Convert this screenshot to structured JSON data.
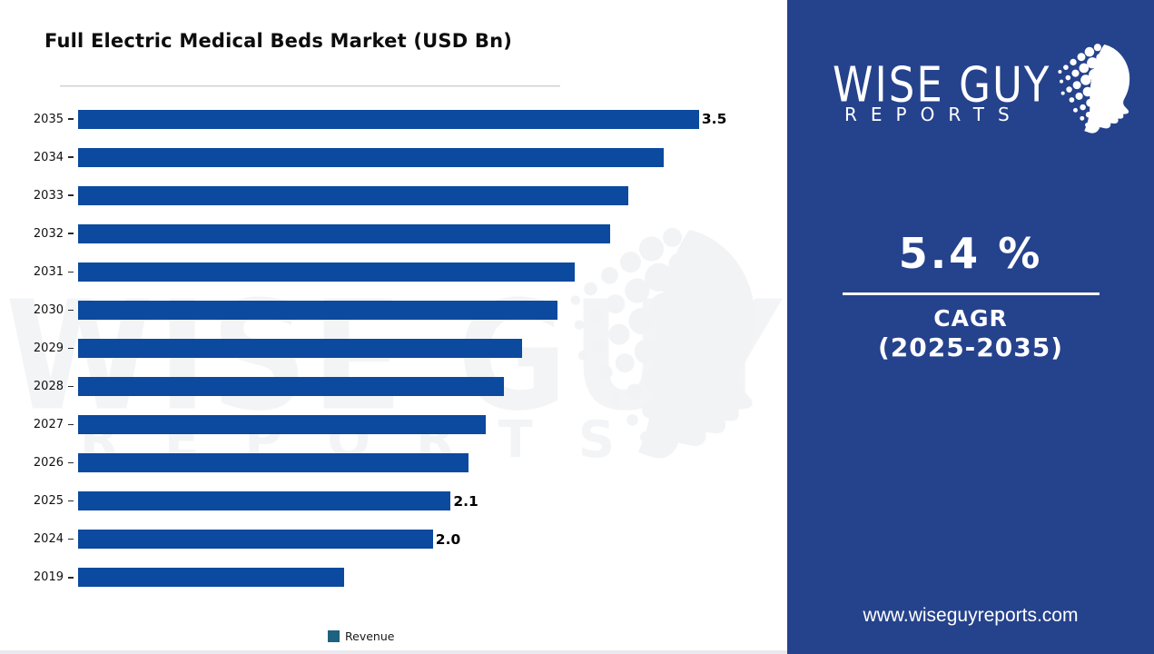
{
  "chart_panel": {
    "title": "Full Electric Medical Beds Market (USD Bn)",
    "watermark_line1": "WISE GUY",
    "watermark_line2": "REPORTS",
    "legend_label": "Revenue",
    "colors": {
      "bar": "#0b4a9e",
      "legend_marker": "#1e6180",
      "title_underline": "#cfcfcf",
      "watermark": "#f3f4f6"
    }
  },
  "chart_data": {
    "type": "bar",
    "orientation": "horizontal",
    "title": "Full Electric Medical Beds Market (USD Bn)",
    "unit": "USD Bn",
    "categories": [
      "2035",
      "2034",
      "2033",
      "2032",
      "2031",
      "2030",
      "2029",
      "2028",
      "2027",
      "2026",
      "2025",
      "2024",
      "2019"
    ],
    "values": [
      3.5,
      3.3,
      3.1,
      3.0,
      2.8,
      2.7,
      2.5,
      2.4,
      2.3,
      2.2,
      2.1,
      2.0,
      1.5
    ],
    "bar_labels": [
      "3.5",
      "",
      "",
      "",
      "",
      "",
      "",
      "",
      "",
      "",
      "2.1",
      "2.0",
      ""
    ],
    "xlim": [
      0,
      3.7
    ],
    "grid": false,
    "legend": [
      {
        "label": "Revenue",
        "color": "#1e6180"
      }
    ],
    "legend_position": "bottom-center",
    "bar_color": "#0b4a9e"
  },
  "side_panel": {
    "background": "#25428c",
    "logo": {
      "line1": "WISE GUY",
      "line2": "REPORTS",
      "face_icon": "face-profile-dots"
    },
    "cagr_value": "5.4 %",
    "cagr_label": "CAGR",
    "cagr_period": "(2025-2035)",
    "website": "www.wiseguyreports.com"
  }
}
